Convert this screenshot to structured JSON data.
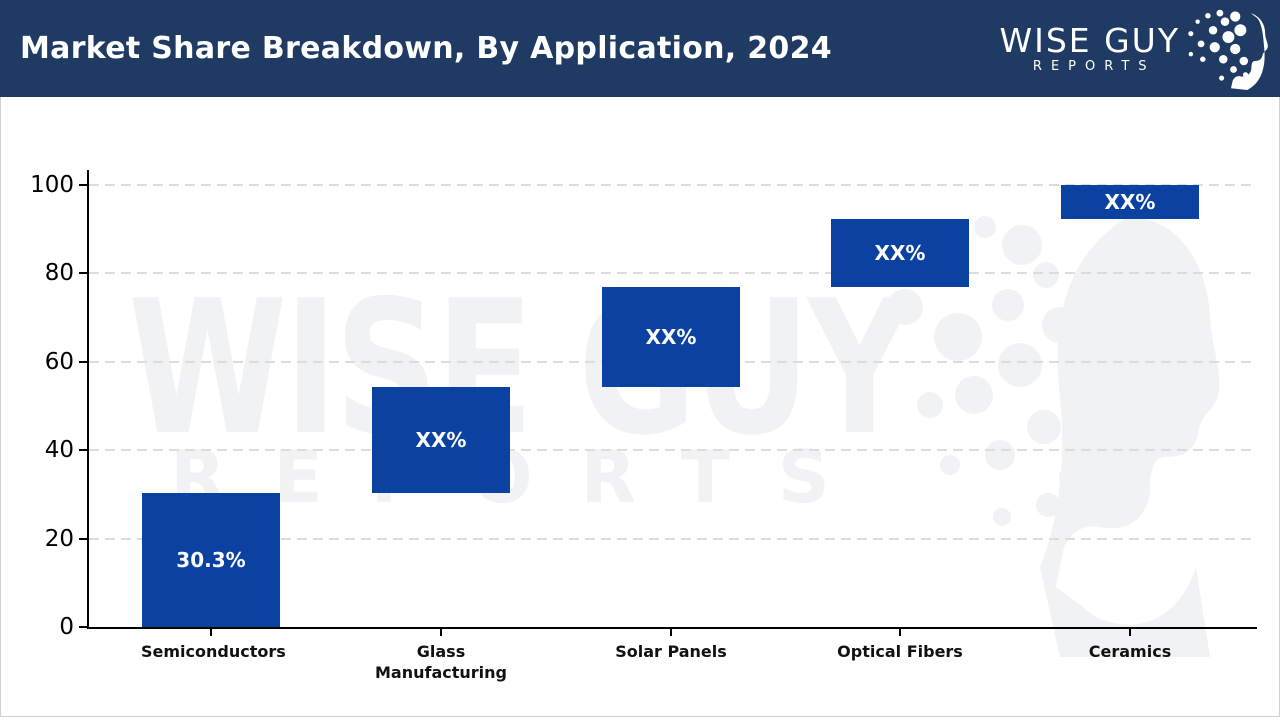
{
  "header": {
    "title": "Market Share Breakdown, By Application, 2024",
    "bg_color": "#1f3a63",
    "logo_line1": "WISE GUY",
    "logo_line2": "REPORTS"
  },
  "watermark": {
    "line1": "WISE GUY",
    "line2": "REPORTS"
  },
  "chart_data": {
    "type": "bar",
    "variant": "waterfall",
    "title": "Market Share Breakdown, By Application, 2024",
    "categories": [
      "Semiconductors",
      "Glass Manufacturing",
      "Solar Panels",
      "Optical Fibers",
      "Ceramics"
    ],
    "segments": [
      {
        "category": "Semiconductors",
        "start": 0,
        "end": 30.3,
        "label": "30.3%"
      },
      {
        "category": "Glass Manufacturing",
        "start": 30.3,
        "end": 54.3,
        "label": "XX%"
      },
      {
        "category": "Solar Panels",
        "start": 54.3,
        "end": 77.0,
        "label": "XX%"
      },
      {
        "category": "Optical Fibers",
        "start": 77.0,
        "end": 92.2,
        "label": "XX%"
      },
      {
        "category": "Ceramics",
        "start": 92.2,
        "end": 100,
        "label": "XX%"
      }
    ],
    "y_ticks": [
      0,
      20,
      40,
      60,
      80,
      100
    ],
    "ylim": [
      0,
      105
    ],
    "xlabel": "",
    "ylabel": "",
    "grid": "horizontal-dashed",
    "legend": "none",
    "bar_color": "#0b41a1",
    "bar_label_color": "#ffffff"
  }
}
